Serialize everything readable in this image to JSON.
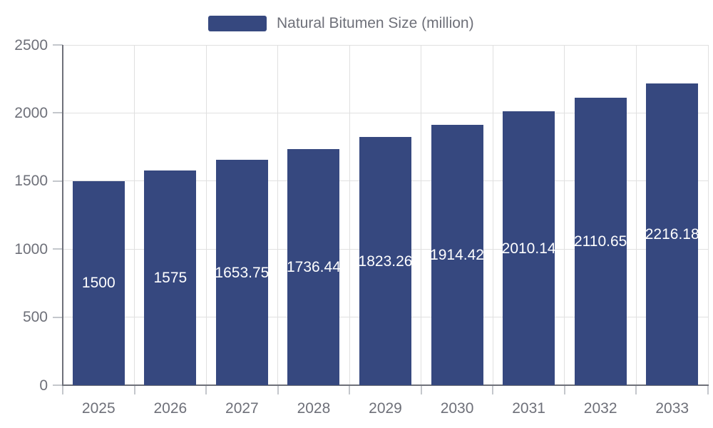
{
  "chart_data": {
    "type": "bar",
    "title": "",
    "categories": [
      "2025",
      "2026",
      "2027",
      "2028",
      "2029",
      "2030",
      "2031",
      "2032",
      "2033"
    ],
    "series": [
      {
        "name": "Natural Bitumen Size (million)",
        "values": [
          1500,
          1575,
          1653.75,
          1736.44,
          1823.26,
          1914.42,
          2010.14,
          2110.65,
          2216.18
        ],
        "labels": [
          "1500",
          "1575",
          "1653.75",
          "1736.44",
          "1823.26",
          "1914.42",
          "2010.14",
          "2110.65",
          "2216.18"
        ]
      }
    ],
    "xlabel": "",
    "ylabel": "",
    "ylim": [
      0,
      2500
    ],
    "y_ticks": [
      0,
      500,
      1000,
      1500,
      2000,
      2500
    ],
    "grid": true,
    "legend": {
      "position": "top",
      "entries": [
        "Natural Bitumen Size (million)"
      ]
    },
    "value_label_position": "inside-center",
    "value_label_color": "#FFFFFF"
  },
  "colors": {
    "background": "#FFFFFF",
    "bar": "#36487F",
    "axis_line": "#6E7079",
    "axis_label": "#6E7079",
    "tick_mark": "#C4C7CC",
    "grid_line": "#E0E0E0",
    "legend_text": "#6E7079",
    "bar_label": "#FFFFFF"
  }
}
